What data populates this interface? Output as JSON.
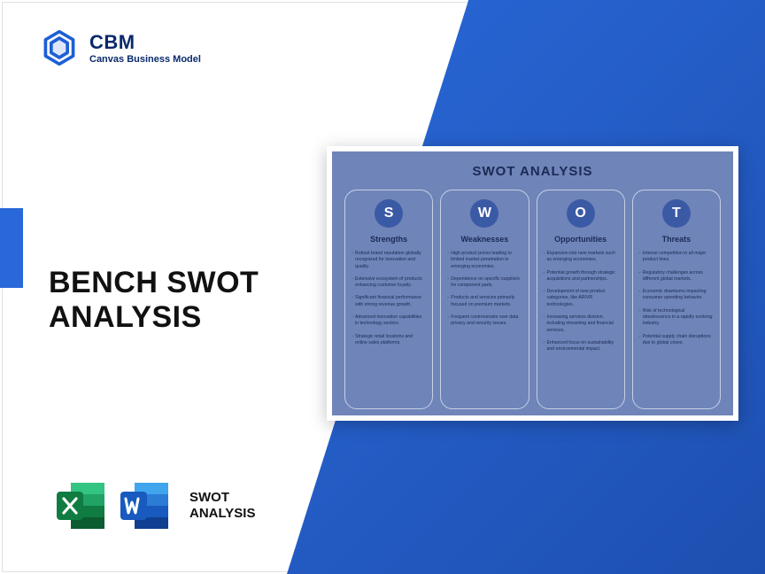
{
  "brand": {
    "abbr": "CBM",
    "full": "Canvas Business Model",
    "logo_color": "#1e5fd6"
  },
  "accent_bar_color": "#2968d8",
  "wedge_gradient": {
    "from": "#2968d8",
    "to": "#1e4fb0"
  },
  "title_line1": "BENCH SWOT",
  "title_line2": "ANALYSIS",
  "apps": {
    "excel": {
      "name": "excel-icon",
      "colors": {
        "dark": "#107c41",
        "mid": "#21a366",
        "light": "#33c481",
        "pale": "#e8f5ee"
      }
    },
    "word": {
      "name": "word-icon",
      "colors": {
        "dark": "#103f91",
        "mid": "#185abd",
        "light": "#2b7cd3",
        "pale": "#eaf1fb"
      }
    },
    "label_line1": "SWOT",
    "label_line2": "ANALYSIS"
  },
  "swot": {
    "card_bg": "#6f84b8",
    "card_border": "#ffffff",
    "col_border": "#c6cfe6",
    "text_color": "#1a2a55",
    "circle_bg": "#3b5aa6",
    "circle_fg": "#ffffff",
    "title": "SWOT ANALYSIS",
    "columns": [
      {
        "letter": "S",
        "heading": "Strengths",
        "items": [
          "Robust brand reputation globally recognized for innovation and quality.",
          "Extensive ecosystem of products enhancing customer loyalty.",
          "Significant financial performance with strong revenue growth.",
          "Advanced innovation capabilities in technology sectors.",
          "Strategic retail locations and online sales platforms."
        ]
      },
      {
        "letter": "W",
        "heading": "Weaknesses",
        "items": [
          "High product prices leading to limited market penetration in emerging economies.",
          "Dependence on specific suppliers for component parts.",
          "Products and services primarily focused on premium markets.",
          "Frequent controversies over data privacy and security issues."
        ]
      },
      {
        "letter": "O",
        "heading": "Opportunities",
        "items": [
          "Expansion into new markets such as emerging economies.",
          "Potential growth through strategic acquisitions and partnerships.",
          "Development of new product categories, like AR/VR technologies.",
          "Increasing services division, including streaming and financial services.",
          "Enhanced focus on sustainability and environmental impact."
        ]
      },
      {
        "letter": "T",
        "heading": "Threats",
        "items": [
          "Intense competition in all major product lines.",
          "Regulatory challenges across different global markets.",
          "Economic downturns impacting consumer spending behavior.",
          "Risk of technological obsolescence in a rapidly evolving industry.",
          "Potential supply chain disruptions due to global crises."
        ]
      }
    ]
  }
}
